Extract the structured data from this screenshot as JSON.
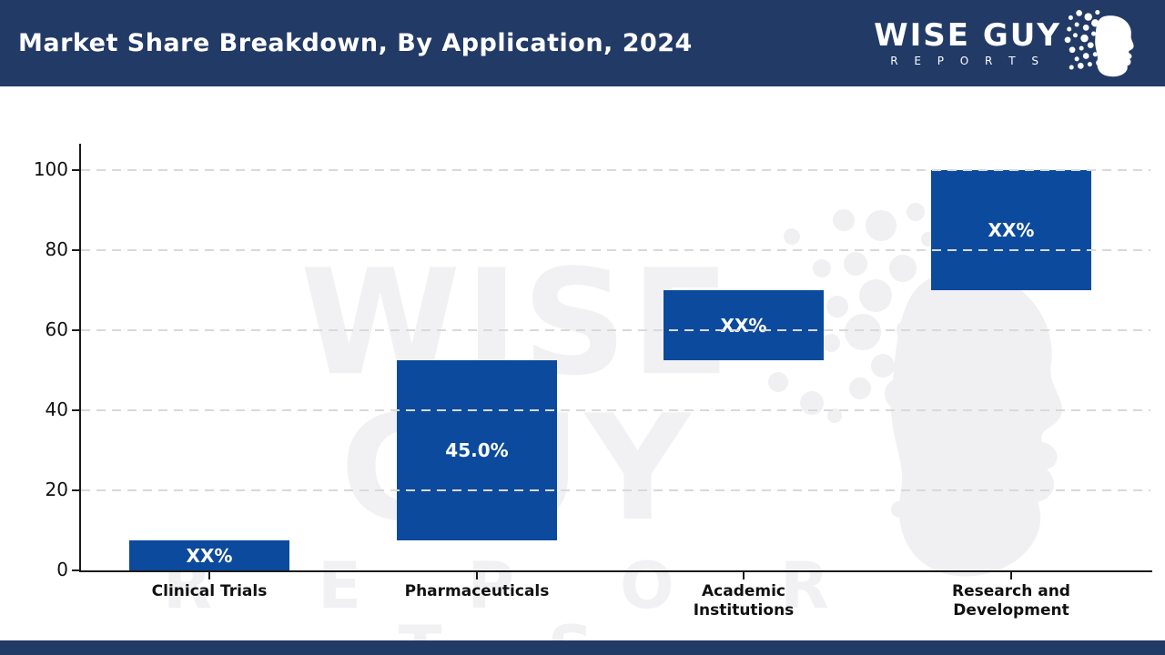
{
  "header": {
    "title": "Market Share Breakdown, By Application, 2024",
    "brand": {
      "line1": "WISE GUY",
      "line2": "R E P O R T S"
    }
  },
  "watermark": {
    "line1": "WISE GUY",
    "line2": "R E P O R T S"
  },
  "colors": {
    "header_bg": "#223A66",
    "footer_bg": "#223A66",
    "bar_blue": "#0C4A9E",
    "bar_label": "#FFFFFF",
    "grid": "#D9D9D9",
    "axis": "#1A1A1A",
    "watermark": "#F1F1F3"
  },
  "chart_data": {
    "type": "bar",
    "subtype": "waterfall",
    "title": "Market Share Breakdown, By Application, 2024",
    "categories": [
      "Clinical Trials",
      "Pharmaceuticals",
      "Academic Institutions",
      "Research and Development"
    ],
    "segments": [
      {
        "category": "Clinical Trials",
        "start": 0,
        "end": 7.5,
        "value": 7.5,
        "label": "XX%"
      },
      {
        "category": "Pharmaceuticals",
        "start": 7.5,
        "end": 52.5,
        "value": 45.0,
        "label": "45.0%"
      },
      {
        "category": "Academic Institutions",
        "start": 52.5,
        "end": 70,
        "value": 17.5,
        "label": "XX%"
      },
      {
        "category": "Research and Development",
        "start": 70,
        "end": 100,
        "value": 30,
        "label": "XX%"
      }
    ],
    "xlabel": "",
    "ylabel": "",
    "ylim": [
      0,
      100
    ],
    "yticks": [
      0,
      20,
      40,
      60,
      80,
      100
    ],
    "grid": "horizontal dashed, drawn over bars",
    "legend": "none",
    "bar_label_color": "#FFFFFF",
    "bar_color": "#0C4A9E"
  }
}
